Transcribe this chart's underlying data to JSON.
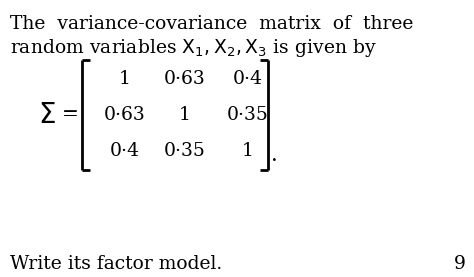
{
  "background_color": "#ffffff",
  "text_color": "#000000",
  "line1": "The  variance-covariance  matrix  of  three",
  "line2_start": "random variables ",
  "line2_vars": "X$_1$, X$_2$, X$_3$",
  "line2_end": " is given by",
  "matrix": [
    [
      "1",
      "0·63",
      "0·4"
    ],
    [
      "0·63",
      "1",
      "0·35"
    ],
    [
      "0·4",
      "0·35",
      "1"
    ]
  ],
  "bottom_text": "Write its factor model.",
  "page_number": "9",
  "font_size_body": 13.5,
  "font_size_matrix": 13.5,
  "font_size_sigma": 20
}
